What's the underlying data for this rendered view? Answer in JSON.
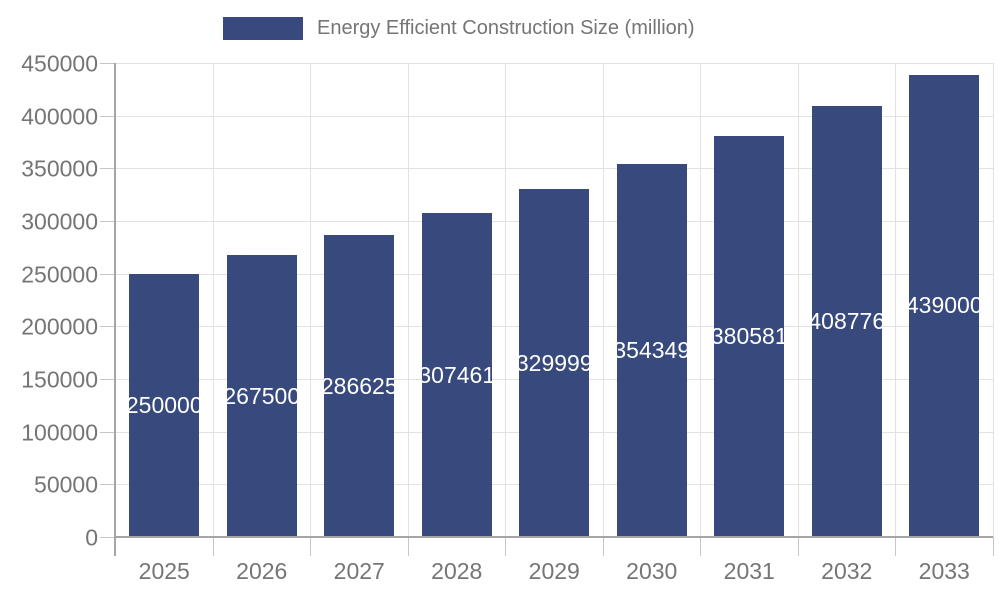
{
  "legend": {
    "label": "Energy Efficient Construction Size (million)"
  },
  "chart_data": {
    "type": "bar",
    "title": "Energy Efficient Construction Size (million)",
    "xlabel": "",
    "ylabel": "",
    "categories": [
      "2025",
      "2026",
      "2027",
      "2028",
      "2029",
      "2030",
      "2031",
      "2032",
      "2033"
    ],
    "series": [
      {
        "name": "Energy Efficient Construction Size (million)",
        "values": [
          250000,
          267500,
          286625,
          307461,
          329999,
          354349,
          380581,
          408776,
          439000
        ]
      }
    ],
    "bar_labels": [
      "250000",
      "267500",
      "286625",
      "307461",
      "329999",
      "354349",
      "380581",
      "408776",
      "439000"
    ],
    "ylim": [
      0,
      450000
    ],
    "ytick_step": 50000,
    "ytick_labels": [
      "0",
      "50000",
      "100000",
      "150000",
      "200000",
      "250000",
      "300000",
      "350000",
      "400000",
      "450000"
    ],
    "grid": true,
    "legend_position": "top-center",
    "colors": {
      "bar": "#37497d",
      "bar_label": "#ffffff",
      "axis_text": "#757575",
      "grid_line": "#e2e2e2",
      "axis_line": "#a5a5a5",
      "tick": "#c6c6c6",
      "background": "#ffffff"
    }
  }
}
